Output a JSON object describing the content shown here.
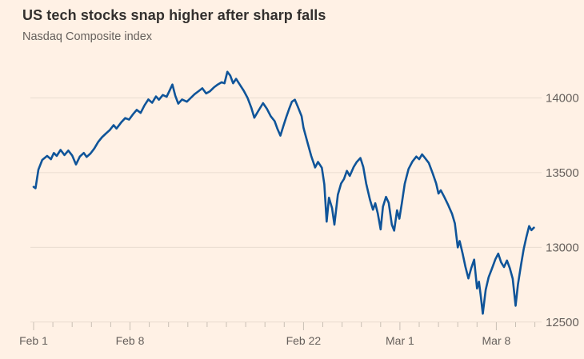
{
  "header": {
    "title": "US tech stocks snap higher after sharp falls",
    "subtitle": "Nasdaq Composite index"
  },
  "colors": {
    "background": "#FFF1E5",
    "line": "#0F5499",
    "grid": "#E9DCD0",
    "axis_text": "#66605C",
    "title_text": "#33302E",
    "tick": "#C9BFB4"
  },
  "chart_data": {
    "type": "line",
    "title": "US tech stocks snap higher after sharp falls",
    "subtitle": "Nasdaq Composite index",
    "xlabel": "",
    "ylabel": "",
    "x_axis": {
      "kind": "trading-days",
      "tick_days": [
        0,
        1,
        2,
        3,
        4,
        5,
        6,
        7,
        8,
        9,
        10,
        11,
        12,
        13,
        14,
        15,
        16,
        17,
        18,
        19,
        20,
        21,
        22,
        23,
        24,
        25,
        26
      ],
      "labeled_ticks": [
        {
          "day": 0,
          "label": "Feb 1"
        },
        {
          "day": 5,
          "label": "Feb 8"
        },
        {
          "day": 14,
          "label": "Feb 22"
        },
        {
          "day": 19,
          "label": "Mar 1"
        },
        {
          "day": 24,
          "label": "Mar 8"
        }
      ]
    },
    "y_axis": {
      "min": 12500,
      "max": 14175,
      "gridlines": [
        12500,
        13000,
        13500,
        14000
      ],
      "tick_labels": [
        "12500",
        "13000",
        "13500",
        "14000"
      ],
      "side": "right"
    },
    "grid": "horizontal-only",
    "legend": "none",
    "series": [
      {
        "name": "Nasdaq Composite index",
        "points": [
          [
            0.0,
            13405
          ],
          [
            0.1,
            13396
          ],
          [
            0.25,
            13520
          ],
          [
            0.45,
            13585
          ],
          [
            0.7,
            13612
          ],
          [
            0.9,
            13590
          ],
          [
            1.05,
            13632
          ],
          [
            1.2,
            13612
          ],
          [
            1.4,
            13652
          ],
          [
            1.6,
            13618
          ],
          [
            1.8,
            13648
          ],
          [
            2.0,
            13615
          ],
          [
            2.2,
            13555
          ],
          [
            2.4,
            13608
          ],
          [
            2.6,
            13632
          ],
          [
            2.75,
            13605
          ],
          [
            2.95,
            13628
          ],
          [
            3.15,
            13662
          ],
          [
            3.35,
            13705
          ],
          [
            3.55,
            13738
          ],
          [
            3.75,
            13762
          ],
          [
            3.95,
            13785
          ],
          [
            4.15,
            13818
          ],
          [
            4.3,
            13795
          ],
          [
            4.55,
            13838
          ],
          [
            4.75,
            13865
          ],
          [
            4.95,
            13855
          ],
          [
            5.15,
            13890
          ],
          [
            5.35,
            13920
          ],
          [
            5.55,
            13900
          ],
          [
            5.75,
            13950
          ],
          [
            5.95,
            13990
          ],
          [
            6.15,
            13968
          ],
          [
            6.35,
            14010
          ],
          [
            6.5,
            13988
          ],
          [
            6.7,
            14020
          ],
          [
            6.9,
            14008
          ],
          [
            7.05,
            14048
          ],
          [
            7.2,
            14090
          ],
          [
            7.35,
            14015
          ],
          [
            7.5,
            13962
          ],
          [
            7.7,
            13990
          ],
          [
            7.95,
            13975
          ],
          [
            8.15,
            14000
          ],
          [
            8.35,
            14025
          ],
          [
            8.55,
            14045
          ],
          [
            8.75,
            14065
          ],
          [
            8.95,
            14030
          ],
          [
            9.15,
            14045
          ],
          [
            9.35,
            14070
          ],
          [
            9.55,
            14090
          ],
          [
            9.75,
            14105
          ],
          [
            9.9,
            14098
          ],
          [
            10.05,
            14175
          ],
          [
            10.2,
            14150
          ],
          [
            10.35,
            14098
          ],
          [
            10.5,
            14128
          ],
          [
            10.7,
            14088
          ],
          [
            10.9,
            14048
          ],
          [
            11.1,
            14000
          ],
          [
            11.3,
            13932
          ],
          [
            11.45,
            13868
          ],
          [
            11.65,
            13912
          ],
          [
            11.9,
            13965
          ],
          [
            12.1,
            13928
          ],
          [
            12.3,
            13878
          ],
          [
            12.5,
            13845
          ],
          [
            12.65,
            13792
          ],
          [
            12.8,
            13748
          ],
          [
            12.95,
            13810
          ],
          [
            13.1,
            13870
          ],
          [
            13.25,
            13925
          ],
          [
            13.4,
            13975
          ],
          [
            13.55,
            13988
          ],
          [
            13.7,
            13942
          ],
          [
            13.9,
            13878
          ],
          [
            14.0,
            13800
          ],
          [
            14.2,
            13705
          ],
          [
            14.4,
            13612
          ],
          [
            14.6,
            13535
          ],
          [
            14.75,
            13572
          ],
          [
            14.95,
            13533
          ],
          [
            15.08,
            13422
          ],
          [
            15.2,
            13172
          ],
          [
            15.32,
            13332
          ],
          [
            15.48,
            13262
          ],
          [
            15.6,
            13152
          ],
          [
            15.78,
            13352
          ],
          [
            15.95,
            13428
          ],
          [
            16.1,
            13458
          ],
          [
            16.25,
            13512
          ],
          [
            16.4,
            13478
          ],
          [
            16.6,
            13538
          ],
          [
            16.75,
            13570
          ],
          [
            16.95,
            13598
          ],
          [
            17.1,
            13538
          ],
          [
            17.25,
            13428
          ],
          [
            17.45,
            13318
          ],
          [
            17.6,
            13252
          ],
          [
            17.72,
            13295
          ],
          [
            17.85,
            13228
          ],
          [
            18.0,
            13120
          ],
          [
            18.12,
            13272
          ],
          [
            18.28,
            13338
          ],
          [
            18.42,
            13298
          ],
          [
            18.58,
            13152
          ],
          [
            18.7,
            13112
          ],
          [
            18.85,
            13248
          ],
          [
            18.97,
            13192
          ],
          [
            19.1,
            13295
          ],
          [
            19.25,
            13425
          ],
          [
            19.45,
            13525
          ],
          [
            19.65,
            13575
          ],
          [
            19.85,
            13608
          ],
          [
            20.0,
            13590
          ],
          [
            20.15,
            13622
          ],
          [
            20.3,
            13598
          ],
          [
            20.5,
            13565
          ],
          [
            20.7,
            13495
          ],
          [
            20.88,
            13428
          ],
          [
            21.0,
            13360
          ],
          [
            21.12,
            13382
          ],
          [
            21.3,
            13338
          ],
          [
            21.5,
            13285
          ],
          [
            21.7,
            13225
          ],
          [
            21.85,
            13160
          ],
          [
            22.0,
            13000
          ],
          [
            22.1,
            13042
          ],
          [
            22.25,
            12960
          ],
          [
            22.4,
            12870
          ],
          [
            22.55,
            12792
          ],
          [
            22.7,
            12862
          ],
          [
            22.85,
            12918
          ],
          [
            23.0,
            12725
          ],
          [
            23.1,
            12770
          ],
          [
            23.2,
            12668
          ],
          [
            23.3,
            12556
          ],
          [
            23.45,
            12715
          ],
          [
            23.6,
            12800
          ],
          [
            23.78,
            12860
          ],
          [
            23.95,
            12920
          ],
          [
            24.1,
            12958
          ],
          [
            24.25,
            12900
          ],
          [
            24.4,
            12868
          ],
          [
            24.55,
            12912
          ],
          [
            24.7,
            12860
          ],
          [
            24.85,
            12790
          ],
          [
            25.0,
            12609
          ],
          [
            25.12,
            12750
          ],
          [
            25.28,
            12880
          ],
          [
            25.42,
            12988
          ],
          [
            25.55,
            13065
          ],
          [
            25.7,
            13142
          ],
          [
            25.82,
            13115
          ],
          [
            25.95,
            13132
          ]
        ]
      }
    ]
  }
}
